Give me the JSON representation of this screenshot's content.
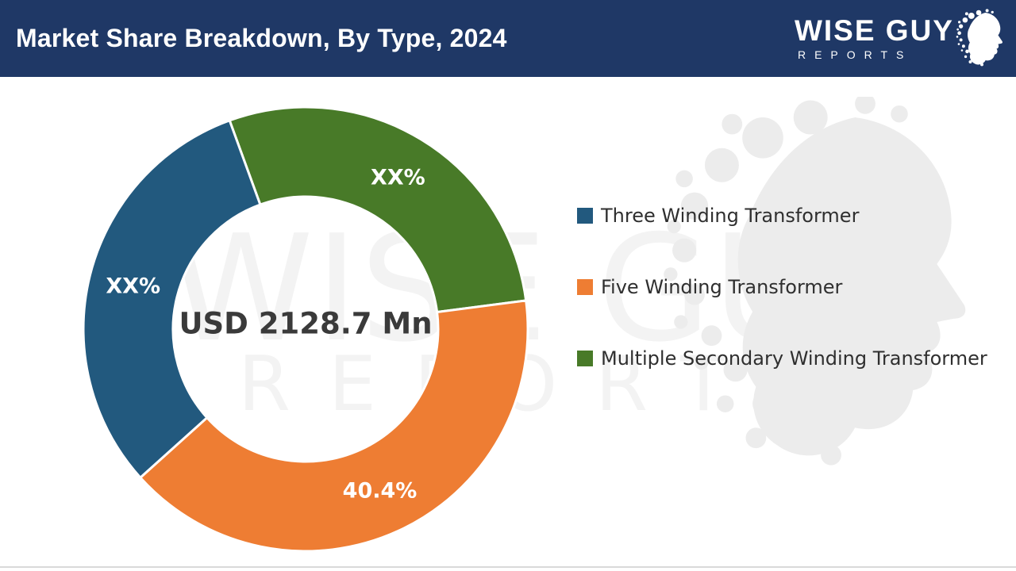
{
  "header": {
    "title": "Market Share Breakdown, By Type, 2024",
    "logo": {
      "line1": "WISE GUY",
      "line2": "REPORTS"
    }
  },
  "watermark": {
    "line1": "WISE GUY",
    "line2": "REPORTS"
  },
  "chart_data": {
    "type": "pie",
    "subtype": "donut",
    "title": "Market Share Breakdown, By Type, 2024",
    "center_label": "USD 2128.7 Mn",
    "start_angle_deg": 340,
    "direction": "clockwise",
    "legend_position": "right",
    "segments": [
      {
        "label": "Multiple Secondary Winding Transformer",
        "value_pct": 28.5,
        "display_label": "XX%",
        "color": "#487A28"
      },
      {
        "label": "Five Winding Transformer",
        "value_pct": 40.4,
        "display_label": "40.4%",
        "color": "#EE7D33"
      },
      {
        "label": "Three Winding Transformer",
        "value_pct": 31.1,
        "display_label": "XX%",
        "color": "#22597E"
      }
    ],
    "legend": [
      {
        "label": "Three Winding Transformer",
        "color": "#22597E"
      },
      {
        "label": "Five Winding Transformer",
        "color": "#EE7D33"
      },
      {
        "label": "Multiple Secondary Winding Transformer",
        "color": "#487A28"
      }
    ]
  },
  "colors": {
    "header_bg": "#1F3866",
    "center_text": "#3A3A3A",
    "legend_text": "#2F2F2F",
    "watermark": "#F3F3F3",
    "watermark_face": "#ECECEC",
    "segment_label": "#FFFFFF",
    "bottom_line": "#D9D9D9"
  }
}
